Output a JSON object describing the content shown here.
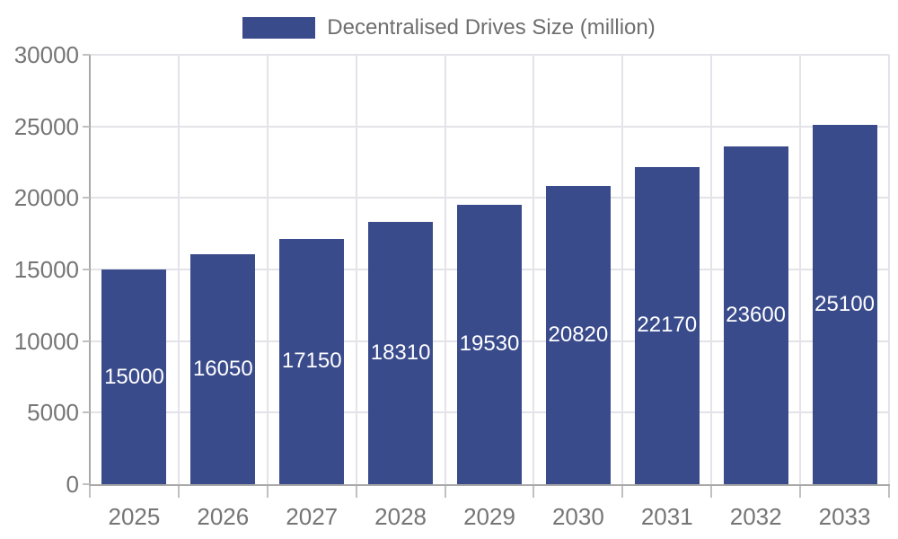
{
  "chart_data": {
    "type": "bar",
    "title": "Decentralised Drives Size (million)",
    "categories": [
      "2025",
      "2026",
      "2027",
      "2028",
      "2029",
      "2030",
      "2031",
      "2032",
      "2033"
    ],
    "series": [
      {
        "name": "Decentralised Drives Size (million)",
        "values": [
          15000,
          16050,
          17150,
          18310,
          19530,
          20820,
          22170,
          23600,
          25100
        ]
      }
    ],
    "bar_value_labels": [
      "15000",
      "16050",
      "17150",
      "18310",
      "19530",
      "20820",
      "22170",
      "23600",
      "25100"
    ],
    "xlabel": "",
    "ylabel": "",
    "ylim": [
      0,
      30000
    ],
    "yticks": [
      0,
      5000,
      10000,
      15000,
      20000,
      25000,
      30000
    ],
    "ytick_labels": [
      "0",
      "5000",
      "10000",
      "15000",
      "20000",
      "25000",
      "30000"
    ],
    "grid": true,
    "legend_position": "top-center",
    "colors": {
      "bar": "#3A4B8C",
      "grid_line": "#E3E3E9",
      "axis_line": "#A8A8A8",
      "tick_mark": "#C0C0C0",
      "tick_text": "#757575",
      "legend_text": "#6E6E6E",
      "bar_label_text": "#FFFFFF",
      "background": "#FFFFFF"
    }
  }
}
